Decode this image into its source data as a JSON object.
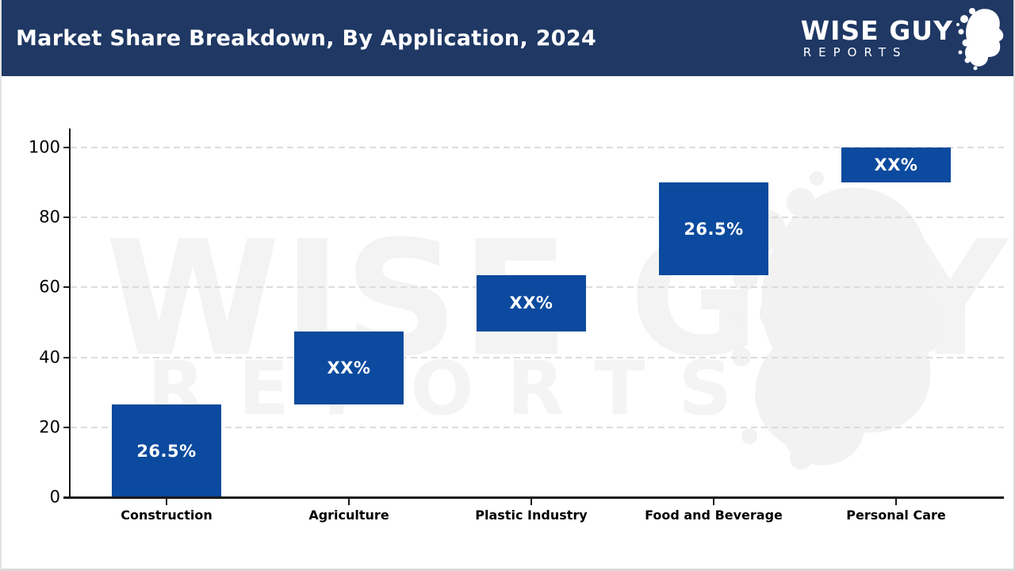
{
  "header": {
    "title": "Market Share Breakdown, By Application, 2024",
    "bg_color": "#1f3864",
    "logo": {
      "line1": "WISE GUY",
      "line2": "REPORTS",
      "face_icon": "dotted-head-profile"
    }
  },
  "watermark": {
    "line1": "WISE GUY",
    "line2": "REPORTS"
  },
  "chart_data": {
    "type": "bar",
    "subtype": "waterfall",
    "title": "Market Share Breakdown, By Application, 2024",
    "xlabel": "",
    "ylabel": "",
    "ylim": [
      0,
      100
    ],
    "yticks": [
      0,
      20,
      40,
      60,
      80,
      100
    ],
    "grid": "horizontal-dashed",
    "legend": null,
    "bar_color": "#0b4a9e",
    "categories": [
      "Construction",
      "Agriculture",
      "Plastic Industry",
      "Food and Beverage",
      "Personal Care"
    ],
    "series": [
      {
        "name": "Market Share",
        "segments": [
          {
            "category": "Construction",
            "start": 0,
            "end": 26.5,
            "label": "26.5%"
          },
          {
            "category": "Agriculture",
            "start": 26.5,
            "end": 47.5,
            "label": "XX%"
          },
          {
            "category": "Plastic Industry",
            "start": 47.5,
            "end": 63.5,
            "label": "XX%"
          },
          {
            "category": "Food and Beverage",
            "start": 63.5,
            "end": 90,
            "label": "26.5%"
          },
          {
            "category": "Personal Care",
            "start": 90,
            "end": 100,
            "label": "XX%"
          }
        ]
      }
    ]
  }
}
